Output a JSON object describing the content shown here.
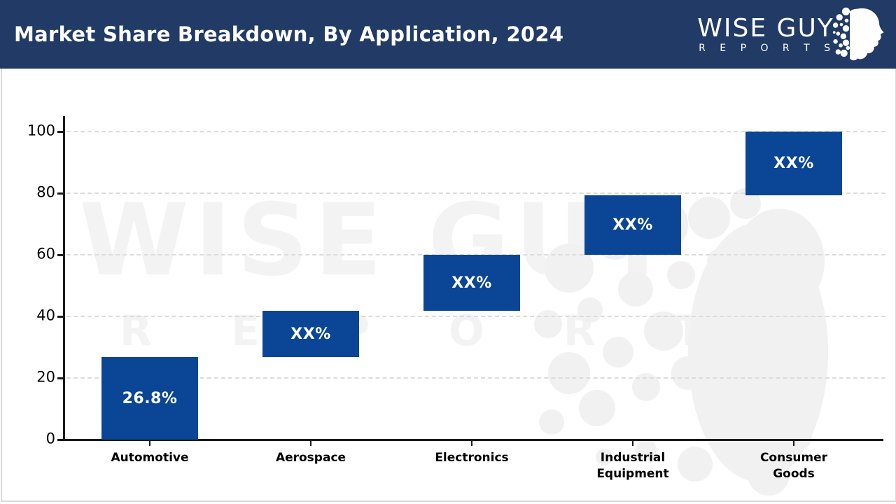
{
  "header": {
    "title": "Market Share Breakdown, By Application, 2024",
    "logo": {
      "primary": "WISE GUY",
      "secondary": "R E P O R T S"
    }
  },
  "watermark": {
    "line1": "WISE GUY",
    "line2": "R E P O R T S"
  },
  "colors": {
    "header_bg": "#213a66",
    "bar_blue": "#0a4596",
    "gridline_gray": "#dcdcdc",
    "watermark_gray": "#f3f3f3",
    "axis_black": "#1a1a1a"
  },
  "chart_data": {
    "type": "bar",
    "subtype": "waterfall",
    "title": "Market Share Breakdown, By Application, 2024",
    "categories": [
      "Automotive",
      "Aerospace",
      "Electronics",
      "Industrial Equipment",
      "Consumer Goods"
    ],
    "segments": [
      {
        "category": "Automotive",
        "start": 0,
        "end": 26.8,
        "label": "26.8%"
      },
      {
        "category": "Aerospace",
        "start": 26.8,
        "end": 41.8,
        "label": "XX%"
      },
      {
        "category": "Electronics",
        "start": 41.8,
        "end": 60.0,
        "label": "XX%"
      },
      {
        "category": "Industrial Equipment",
        "start": 60.0,
        "end": 79.4,
        "label": "XX%"
      },
      {
        "category": "Consumer Goods",
        "start": 79.4,
        "end": 100.0,
        "label": "XX%"
      }
    ],
    "y_ticks": [
      0,
      20,
      40,
      60,
      80,
      100
    ],
    "ylim": [
      0,
      105
    ],
    "xlabel": "",
    "ylabel": "",
    "grid": "horizontal-dashed",
    "legend": "none",
    "bar_color": "#0a4596",
    "bar_label_color": "#ffffff"
  }
}
